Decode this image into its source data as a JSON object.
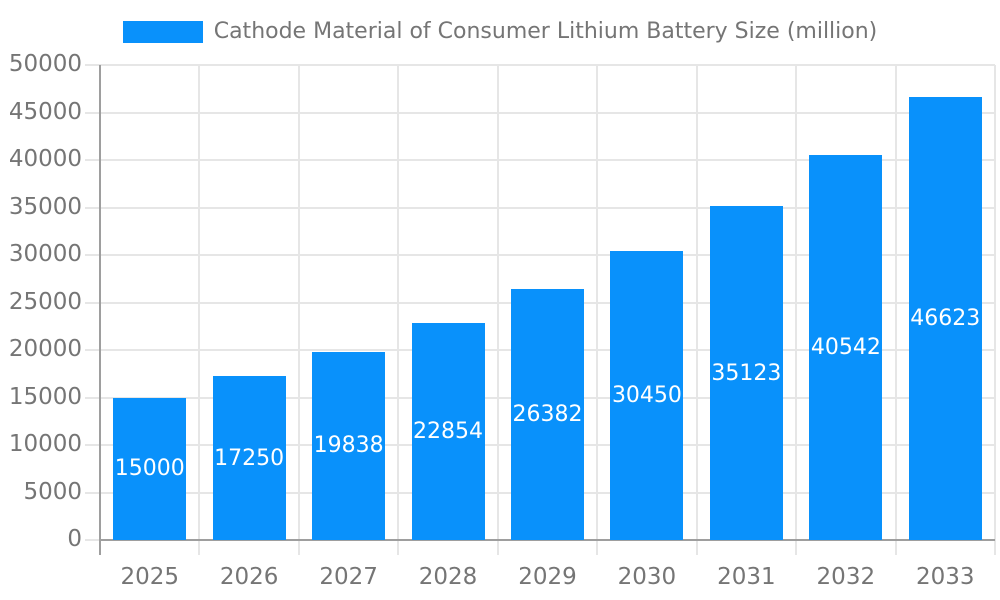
{
  "chart_data": {
    "type": "bar",
    "title": "Cathode Material of Consumer Lithium Battery Size (million)",
    "categories": [
      "2025",
      "2026",
      "2027",
      "2028",
      "2029",
      "2030",
      "2031",
      "2032",
      "2033"
    ],
    "values": [
      15000,
      17250,
      19838,
      22854,
      26382,
      30450,
      35123,
      40542,
      46623
    ],
    "xlabel": "",
    "ylabel": "",
    "ylim": [
      0,
      50000
    ],
    "yticks": [
      0,
      5000,
      10000,
      15000,
      20000,
      25000,
      30000,
      35000,
      40000,
      45000,
      50000
    ],
    "grid": true,
    "legend_position": "top",
    "colors": {
      "bar": "#0991FB",
      "bar_value_label": "#FFFFFF",
      "axis_text": "#757575",
      "grid_line": "#E6E6E6",
      "axis_line": "#9E9E9E",
      "background": "#FFFFFF"
    }
  }
}
